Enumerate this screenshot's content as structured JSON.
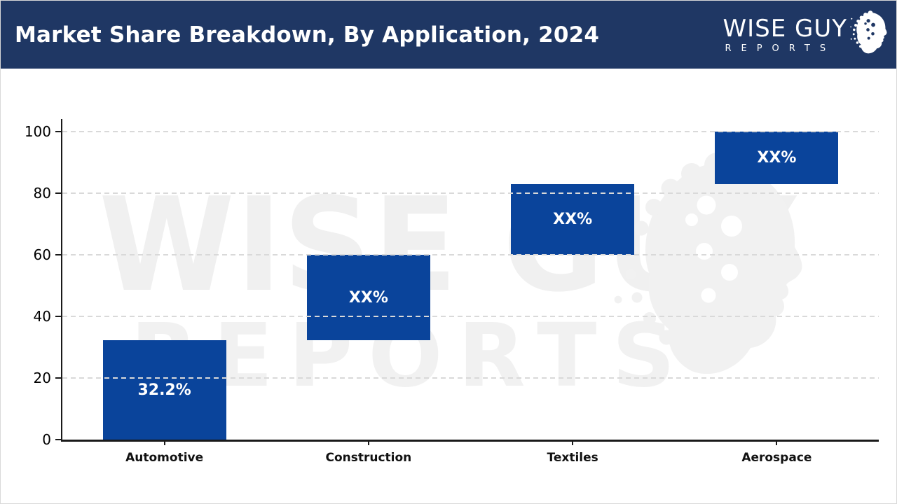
{
  "header": {
    "title": "Market Share Breakdown, By Application, 2024",
    "background_color": "#1f3764",
    "logo": {
      "line1": "WISE GUY",
      "line2": "REPORTS"
    }
  },
  "watermark": {
    "line1": "WISE GUY",
    "line2": "REPORTS"
  },
  "chart_data": {
    "type": "bar",
    "variant": "waterfall",
    "title": "Market Share Breakdown, By Application, 2024",
    "categories": [
      "Automotive",
      "Construction",
      "Textiles",
      "Aerospace"
    ],
    "segments": [
      {
        "category": "Automotive",
        "start": 0,
        "end": 32.2,
        "label": "32.2%"
      },
      {
        "category": "Construction",
        "start": 32.2,
        "end": 60,
        "label": "XX%"
      },
      {
        "category": "Textiles",
        "start": 60,
        "end": 83,
        "label": "XX%"
      },
      {
        "category": "Aerospace",
        "start": 83,
        "end": 100,
        "label": "XX%"
      }
    ],
    "y_ticks": [
      0,
      20,
      40,
      60,
      80,
      100
    ],
    "ylim": [
      0,
      104
    ],
    "xlabel": "",
    "ylabel": "",
    "grid": "horizontal-dashed",
    "legend": "none",
    "bar_color": "#0a449b",
    "bar_label_color": "#ffffff",
    "axis_color": "#1a1a1a"
  }
}
